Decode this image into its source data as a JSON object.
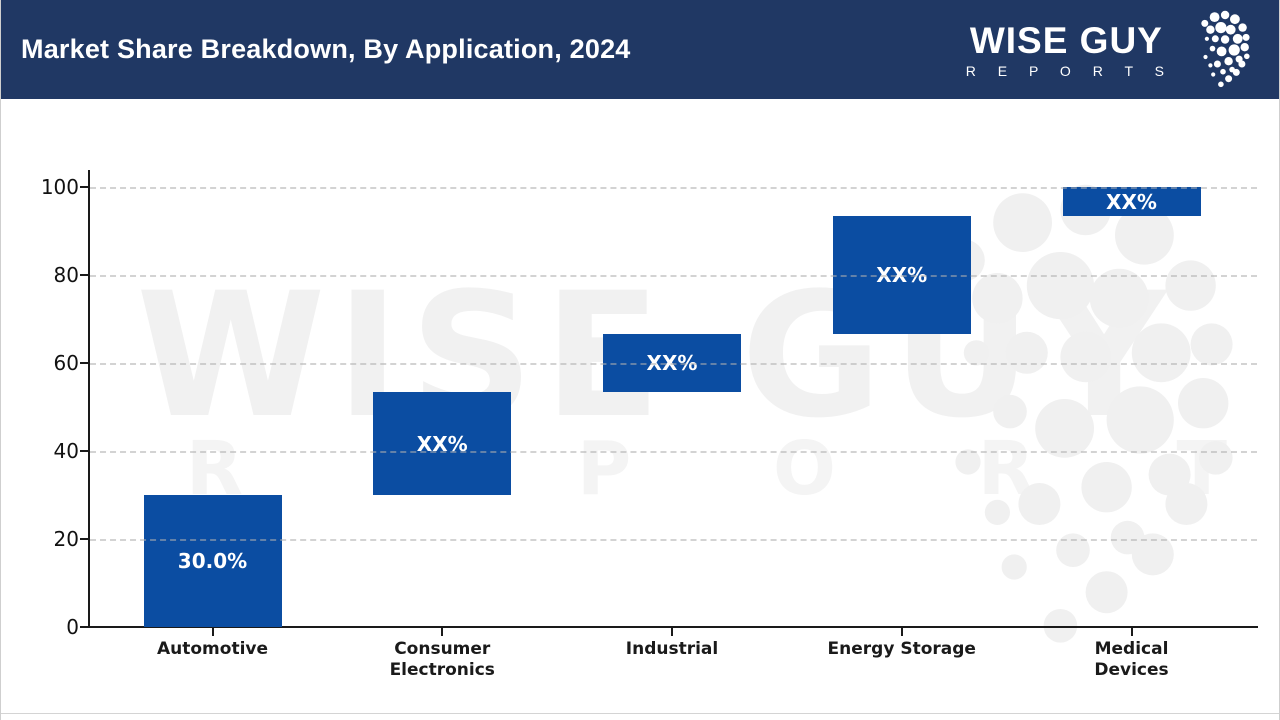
{
  "header": {
    "title": "Market Share Breakdown, By Application, 2024",
    "bg_color": "#203864",
    "logo": {
      "line1": "WISE GUY",
      "line2": "R E P O R T S"
    }
  },
  "watermark": {
    "line1": "WISE GUY",
    "line2": "R E P O R T S"
  },
  "chart_data": {
    "type": "bar",
    "subtype": "waterfall",
    "title": "Market Share Breakdown, By Application, 2024",
    "xlabel": "",
    "ylabel": "",
    "categories": [
      "Automotive",
      "Consumer Electronics",
      "Industrial",
      "Energy Storage",
      "Medical Devices"
    ],
    "segments": [
      {
        "category": "Automotive",
        "start": 0.0,
        "end": 30.0,
        "label": "30.0%"
      },
      {
        "category": "Consumer Electronics",
        "start": 30.0,
        "end": 53.3,
        "label": "XX%"
      },
      {
        "category": "Industrial",
        "start": 53.3,
        "end": 66.6,
        "label": "XX%"
      },
      {
        "category": "Energy Storage",
        "start": 66.6,
        "end": 93.3,
        "label": "XX%"
      },
      {
        "category": "Medical Devices",
        "start": 93.3,
        "end": 100.0,
        "label": "XX%"
      }
    ],
    "ylim": [
      0,
      100
    ],
    "yticks": [
      0,
      20,
      40,
      60,
      80,
      100
    ],
    "grid": "horizontal-dashed",
    "legend": "none",
    "bar_color": "#0b4da2",
    "bar_label_color": "#ffffff",
    "axis_color": "#1a1a1a",
    "grid_color": "#d9d9d9"
  }
}
